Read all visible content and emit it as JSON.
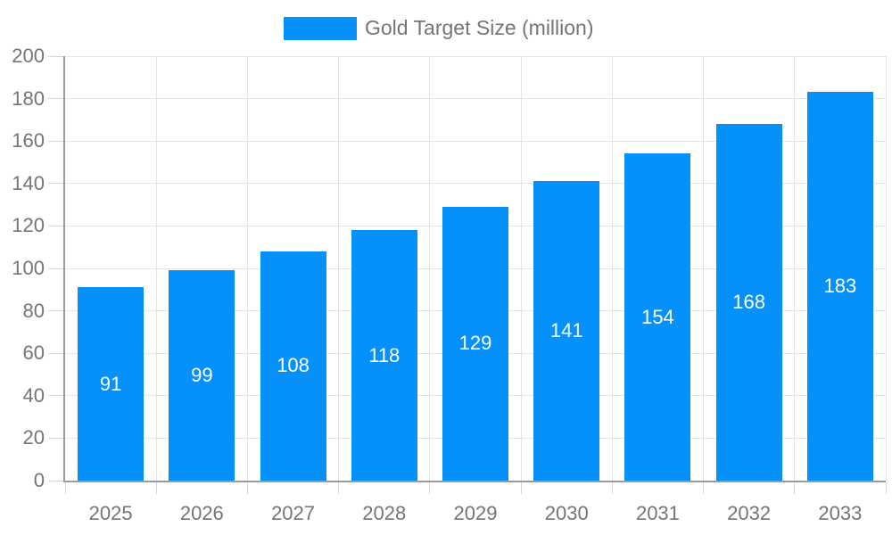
{
  "chart_data": {
    "type": "bar",
    "title": "Gold Target Size (million)",
    "legend_entries": [
      "Gold Target Size (million)"
    ],
    "legend_position": "top",
    "categories": [
      "2025",
      "2026",
      "2027",
      "2028",
      "2029",
      "2030",
      "2031",
      "2032",
      "2033"
    ],
    "series": [
      {
        "name": "Gold Target Size (million)",
        "values": [
          91,
          99,
          108,
          118,
          129,
          141,
          154,
          168,
          183
        ]
      }
    ],
    "value_labels_shown": true,
    "xlabel": "",
    "ylabel": "",
    "ylim": [
      0,
      200
    ],
    "yticks": [
      0,
      20,
      40,
      60,
      80,
      100,
      120,
      140,
      160,
      180,
      200
    ],
    "grid": true,
    "colors": {
      "bar": "#0691FA",
      "grid": "#E4E4E4",
      "axis": "#9A9A9A",
      "tick": "#D6D6D6",
      "text": "#757575",
      "value_label": "#FFFFFF",
      "background": "#FFFFFF"
    }
  }
}
